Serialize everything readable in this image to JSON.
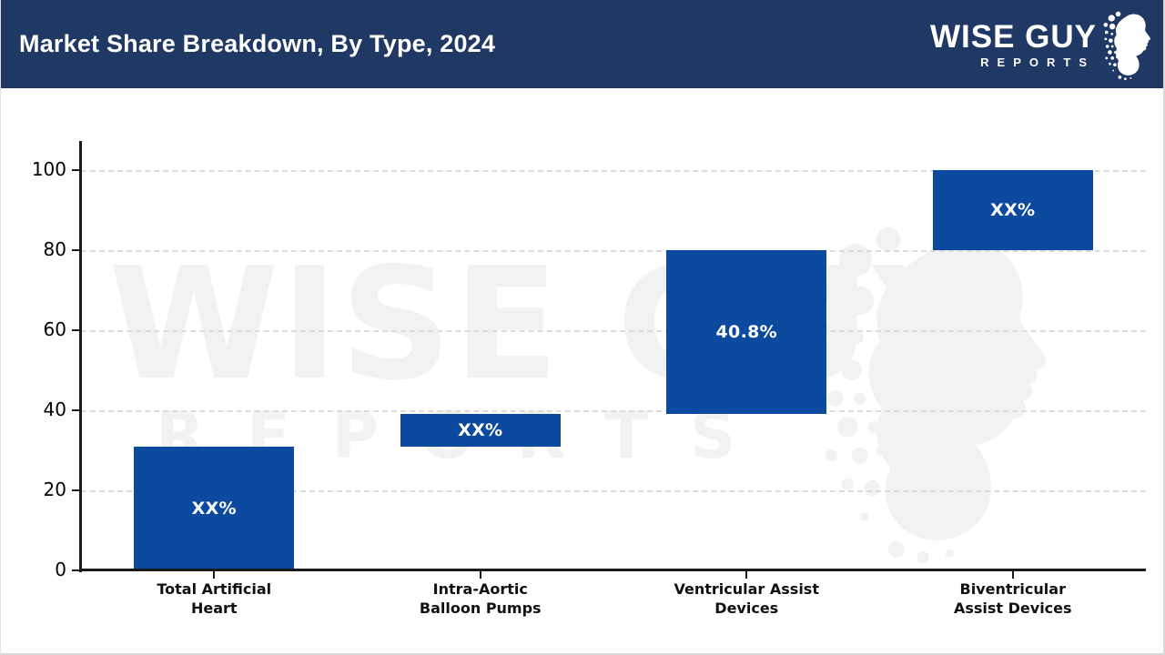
{
  "header": {
    "title": "Market Share Breakdown, By Type, 2024",
    "logo": {
      "name": "WISE GUY",
      "sub": "REPORTS"
    }
  },
  "watermark": {
    "big_text": "WISE GUY",
    "sub_text": "REPORTS"
  },
  "colors": {
    "header_bg": "#1F3864",
    "bar": "#0B4A9E",
    "grid": "#DCDCDC",
    "axis": "#1A1A1A",
    "watermark": "#F1F2F4",
    "bar_label": "#FFFFFF"
  },
  "chart_data": {
    "type": "bar",
    "subtype": "waterfall",
    "title": "Market Share Breakdown, By Type, 2024",
    "categories": [
      "Total Artificial Heart",
      "Intra-Aortic Balloon Pumps",
      "Ventricular Assist Devices",
      "Biventricular Assist Devices"
    ],
    "category_label_lines": [
      [
        "Total Artificial",
        "Heart"
      ],
      [
        "Intra-Aortic",
        "Balloon Pumps"
      ],
      [
        "Ventricular Assist",
        "Devices"
      ],
      [
        "Biventricular",
        "Assist Devices"
      ]
    ],
    "values": [
      31.0,
      8.2,
      40.8,
      20.0
    ],
    "segments": [
      [
        0,
        31.0
      ],
      [
        31.0,
        39.2
      ],
      [
        39.2,
        80.0
      ],
      [
        80.0,
        100.0
      ]
    ],
    "bar_labels": [
      "XX%",
      "XX%",
      "40.8%",
      "XX%"
    ],
    "xlabel": "",
    "ylabel": "",
    "ylim": [
      0,
      100
    ],
    "yticks": [
      0,
      20,
      40,
      60,
      80,
      100
    ],
    "grid": "horizontal-dashed",
    "legend": "none",
    "bar_color": "#0B4A9E"
  }
}
